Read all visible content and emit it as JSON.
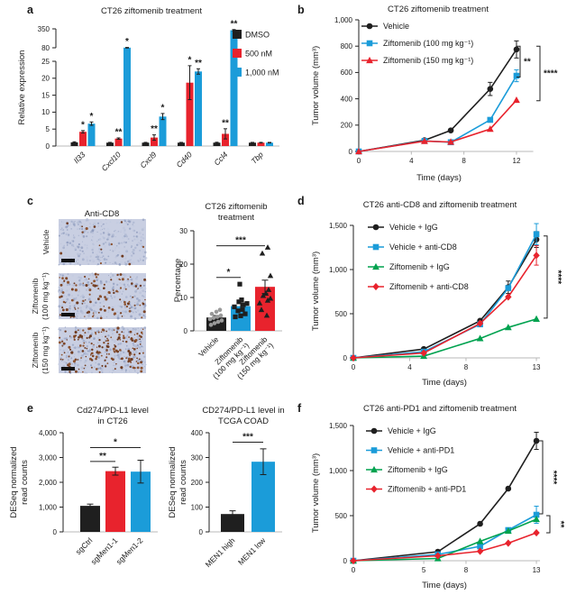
{
  "panel_letters": {
    "a": "a",
    "b": "b",
    "c": "c",
    "d": "d",
    "e": "e",
    "f": "f"
  },
  "colors": {
    "black": "#1f1f1f",
    "red": "#e8232d",
    "blue": "#1b9cd9",
    "green": "#00a24f",
    "gray": "#9a9a9a",
    "axis": "#222222",
    "baseline": "#b9b9b9",
    "ihc_bg": "#c9cfe2",
    "ihc_speckles": [
      "#aeb8d2",
      "#9ba7c6",
      "#c3cbe0",
      "#8d9abc",
      "#bac2da"
    ],
    "ihc_dots": [
      "#7d4527",
      "#8d5330",
      "#6e3a1f"
    ],
    "scalebar": "#111111"
  },
  "ihc": {
    "title": "Anti-CD8",
    "rows": [
      {
        "lines": [
          "Vehicle"
        ],
        "dots": 14
      },
      {
        "lines": [
          "Ziftomenib",
          "(100 mg kg⁻¹)"
        ],
        "dots": 110
      },
      {
        "lines": [
          "Ziftomenib",
          "(150 mg kg⁻¹)"
        ],
        "dots": 185
      }
    ]
  },
  "chart_data": [
    {
      "id": "a",
      "type": "bar",
      "title": "CT26 ziftomenib treatment",
      "ylabel": "Relative expression",
      "categories": [
        "Il33",
        "Cxcl10",
        "Cxcl9",
        "Cd40",
        "Ccl4",
        "Tbp"
      ],
      "categories_italic": true,
      "broken_axis": {
        "lower_ticks": [
          [
            0,
            "0"
          ],
          [
            5,
            "5"
          ],
          [
            10,
            "10"
          ],
          [
            15,
            "15"
          ],
          [
            20,
            "20"
          ],
          [
            25,
            "25"
          ]
        ],
        "upper_ticks": [
          [
            80,
            "80"
          ],
          [
            350,
            "350"
          ]
        ]
      },
      "legend_position": "right",
      "series": [
        {
          "name": "DMSO",
          "color": "black",
          "values": [
            1.1,
            1,
            1,
            1,
            1,
            1
          ],
          "errors": [
            0.15,
            0.08,
            0.08,
            0.08,
            0.12,
            0.08
          ]
        },
        {
          "name": "500 nM",
          "color": "red",
          "values": [
            4.2,
            2.2,
            2.5,
            18.7,
            3.6,
            1
          ],
          "errors": [
            0.35,
            0.2,
            0.8,
            5,
            1.5,
            0.08
          ]
        },
        {
          "name": "1,000 nM",
          "color": "blue",
          "values": [
            6.6,
            82,
            8.7,
            22,
            330,
            1
          ],
          "errors": [
            0.5,
            3,
            0.9,
            0.8,
            10,
            0.08
          ]
        }
      ],
      "sig_stars": [
        {
          "cat": 0,
          "ser": 1,
          "text": "*"
        },
        {
          "cat": 0,
          "ser": 2,
          "text": "*"
        },
        {
          "cat": 1,
          "ser": 1,
          "text": "**"
        },
        {
          "cat": 1,
          "ser": 2,
          "text": "*"
        },
        {
          "cat": 2,
          "ser": 1,
          "text": "**"
        },
        {
          "cat": 2,
          "ser": 2,
          "text": "*"
        },
        {
          "cat": 3,
          "ser": 1,
          "text": "*"
        },
        {
          "cat": 3,
          "ser": 2,
          "text": "**"
        },
        {
          "cat": 4,
          "ser": 1,
          "text": "**"
        },
        {
          "cat": 4,
          "ser": 2,
          "text": "**"
        }
      ]
    },
    {
      "id": "b",
      "type": "line",
      "title": "CT26 ziftomenib treatment",
      "xlabel": "Time (days)",
      "ylabel": "Tumor volume (mm³)",
      "xlim": [
        0,
        13
      ],
      "ylim": [
        0,
        1000
      ],
      "x": [
        0,
        5,
        7,
        10,
        12
      ],
      "xticks": [
        [
          0,
          "0"
        ],
        [
          4,
          "4"
        ],
        [
          8,
          "8"
        ],
        [
          12,
          "12"
        ]
      ],
      "yticks": [
        [
          0,
          "0"
        ],
        [
          200,
          "200"
        ],
        [
          400,
          "400"
        ],
        [
          600,
          "600"
        ],
        [
          800,
          "800"
        ],
        [
          1000,
          "1,000"
        ]
      ],
      "series": [
        {
          "name": "Vehicle",
          "color": "black",
          "marker": "circle",
          "values": [
            0,
            85,
            160,
            475,
            775
          ],
          "errors": [
            4,
            12,
            18,
            50,
            65
          ]
        },
        {
          "name": "Ziftomenib (100 mg kg⁻¹)",
          "color": "blue",
          "marker": "square",
          "values": [
            0,
            80,
            70,
            240,
            575
          ],
          "errors": [
            4,
            10,
            10,
            40,
            45
          ]
        },
        {
          "name": "Ziftomenib (150 mg kg⁻¹)",
          "color": "red",
          "marker": "triangle",
          "values": [
            0,
            78,
            72,
            170,
            390
          ],
          "errors": [
            4,
            10,
            10,
            20,
            38
          ]
        }
      ],
      "brackets": [
        {
          "top": 800,
          "bot": 565,
          "text": "**"
        },
        {
          "top": 800,
          "bot": 385,
          "text": "****"
        }
      ]
    },
    {
      "id": "c",
      "type": "bar-scatter",
      "title": [
        "CT26 ziftomenib",
        "treatment"
      ],
      "ylabel": "Percentage",
      "yticks": [
        [
          0,
          "0"
        ],
        [
          10,
          "10"
        ],
        [
          20,
          "20"
        ],
        [
          30,
          "30"
        ]
      ],
      "categories": [
        [
          "Vehicle"
        ],
        [
          "Ziftomenib",
          "(100 mg kg⁻¹)"
        ],
        [
          "Ziftomenib",
          "(150 mg kg⁻¹)"
        ]
      ],
      "bars": {
        "values": [
          4,
          7.4,
          13.2
        ],
        "errors": [
          0.6,
          1.0,
          2.0
        ],
        "colors": [
          "black",
          "blue",
          "red"
        ]
      },
      "points": [
        {
          "marker": "circle",
          "color": "gray",
          "pts": [
            [
              -6,
              1.8
            ],
            [
              -2,
              2.3
            ],
            [
              2,
              2.7
            ],
            [
              6,
              3.1
            ],
            [
              -7,
              3.5
            ],
            [
              -3,
              3.9
            ],
            [
              1,
              4.2
            ],
            [
              5,
              4.6
            ],
            [
              -5,
              5.1
            ],
            [
              0,
              5.7
            ],
            [
              4,
              6.3
            ]
          ]
        },
        {
          "marker": "square",
          "color": "black",
          "pts": [
            [
              -6,
              4.2
            ],
            [
              0,
              4.5
            ],
            [
              5,
              5.1
            ],
            [
              -3,
              6.0
            ],
            [
              2,
              6.4
            ],
            [
              -7,
              7.2
            ],
            [
              3,
              7.8
            ],
            [
              7,
              8.2
            ],
            [
              -2,
              8.7
            ],
            [
              1,
              9.3
            ],
            [
              -1,
              14.0
            ]
          ]
        },
        {
          "marker": "triangle",
          "color": "black",
          "pts": [
            [
              2,
              4.6
            ],
            [
              -4,
              6.3
            ],
            [
              -6,
              8.3
            ],
            [
              3,
              9.1
            ],
            [
              6,
              9.7
            ],
            [
              -2,
              10.5
            ],
            [
              1,
              11.2
            ],
            [
              4,
              12.3
            ],
            [
              6,
              16.5
            ],
            [
              -3,
              23.2
            ],
            [
              3,
              25.0
            ]
          ]
        }
      ],
      "sig_lines": [
        {
          "from": 0,
          "to": 1,
          "y": 16,
          "text": "*"
        },
        {
          "from": 0,
          "to": 2,
          "y": 25.5,
          "text": "***"
        }
      ]
    },
    {
      "id": "d",
      "type": "line",
      "title": "CT26 anti-CD8 and ziftomenib treatment",
      "xlabel": "Time (days)",
      "ylabel": "Tumor volume (mm³)",
      "xlim": [
        0,
        13
      ],
      "ylim": [
        0,
        1500
      ],
      "x": [
        0,
        5,
        9,
        11,
        13
      ],
      "xticks": [
        [
          0,
          "0"
        ],
        [
          4,
          "4"
        ],
        [
          8,
          "8"
        ],
        [
          13,
          "13"
        ]
      ],
      "yticks": [
        [
          0,
          "0"
        ],
        [
          500,
          "500"
        ],
        [
          1000,
          "1,000"
        ],
        [
          1500,
          "1,500"
        ]
      ],
      "series": [
        {
          "name": "Vehicle + IgG",
          "color": "black",
          "marker": "circle",
          "values": [
            0,
            100,
            420,
            800,
            1340
          ],
          "errors": [
            5,
            15,
            55,
            70,
            90
          ]
        },
        {
          "name": "Vehicle + anti-CD8",
          "color": "blue",
          "marker": "square",
          "values": [
            0,
            70,
            380,
            790,
            1400
          ],
          "errors": [
            5,
            12,
            45,
            60,
            120
          ]
        },
        {
          "name": "Ziftomenib + IgG",
          "color": "green",
          "marker": "triangle",
          "values": [
            0,
            20,
            220,
            345,
            440
          ],
          "errors": [
            4,
            8,
            25,
            45,
            50
          ]
        },
        {
          "name": "Ziftomenib + anti-CD8",
          "color": "red",
          "marker": "diamond",
          "values": [
            0,
            55,
            390,
            690,
            1160
          ],
          "errors": [
            5,
            10,
            50,
            60,
            110
          ]
        }
      ],
      "brackets": [
        {
          "top": 1380,
          "bot": 450,
          "text": "****"
        }
      ]
    },
    {
      "id": "e1",
      "type": "bar-simple",
      "title": [
        "Cd274/PD-L1 level",
        "in CT26"
      ],
      "ylabel": [
        "DESeq normalized",
        "read counts"
      ],
      "yticks": [
        [
          0,
          "0"
        ],
        [
          1000,
          "1,000"
        ],
        [
          2000,
          "2,000"
        ],
        [
          3000,
          "3,000"
        ],
        [
          4000,
          "4,000"
        ]
      ],
      "categories": [
        [
          "sgCtrl"
        ],
        [
          "sgMen1-1"
        ],
        [
          "sgMen1-2"
        ]
      ],
      "bars": {
        "values": [
          1050,
          2450,
          2430
        ],
        "errors": [
          70,
          160,
          460
        ],
        "colors": [
          "black",
          "red",
          "blue"
        ]
      },
      "sig_lines": [
        {
          "from": 0,
          "to": 1,
          "y": 2840,
          "text": "**"
        },
        {
          "from": 0,
          "to": 2,
          "y": 3400,
          "text": "*"
        }
      ]
    },
    {
      "id": "e2",
      "type": "bar-simple",
      "title": [
        "CD274/PD-L1 level in",
        "TCGA COAD"
      ],
      "ylabel": [
        "DESeq normalized",
        "read counts"
      ],
      "yticks": [
        [
          0,
          "0"
        ],
        [
          100,
          "100"
        ],
        [
          200,
          "200"
        ],
        [
          300,
          "300"
        ],
        [
          400,
          "400"
        ]
      ],
      "categories": [
        [
          "MEN1 high"
        ],
        [
          "MEN1 low"
        ]
      ],
      "bars": {
        "values": [
          72,
          283
        ],
        "errors": [
          13,
          52
        ],
        "colors": [
          "black",
          "blue"
        ]
      },
      "sig_lines": [
        {
          "from": 0,
          "to": 1,
          "y": 362,
          "text": "***"
        }
      ]
    },
    {
      "id": "f",
      "type": "line",
      "title": "CT26 anti-PD1 and ziftomenib treatment",
      "xlabel": "Time (days)",
      "ylabel": "Tumor volume (mm³)",
      "xlim": [
        0,
        13
      ],
      "ylim": [
        0,
        1500
      ],
      "x": [
        0,
        6,
        9,
        11,
        13
      ],
      "xticks": [
        [
          0,
          "0"
        ],
        [
          5,
          "5"
        ],
        [
          8,
          "8"
        ],
        [
          13,
          "13"
        ]
      ],
      "yticks": [
        [
          0,
          "0"
        ],
        [
          500,
          "500"
        ],
        [
          1000,
          "1,000"
        ],
        [
          1500,
          "1,500"
        ]
      ],
      "series": [
        {
          "name": "Vehicle + IgG",
          "color": "black",
          "marker": "circle",
          "values": [
            0,
            100,
            410,
            800,
            1330
          ],
          "errors": [
            5,
            15,
            40,
            60,
            95
          ]
        },
        {
          "name": "Vehicle + anti-PD1",
          "color": "blue",
          "marker": "square",
          "values": [
            0,
            70,
            160,
            340,
            510
          ],
          "errors": [
            5,
            10,
            25,
            40,
            95
          ]
        },
        {
          "name": "Ziftomenib + IgG",
          "color": "green",
          "marker": "triangle",
          "values": [
            0,
            25,
            215,
            330,
            460
          ],
          "errors": [
            4,
            8,
            25,
            40,
            45
          ]
        },
        {
          "name": "Ziftomenib + anti-PD1",
          "color": "red",
          "marker": "diamond",
          "values": [
            0,
            55,
            105,
            195,
            310
          ],
          "errors": [
            5,
            10,
            15,
            30,
            35
          ]
        }
      ],
      "brackets": [
        {
          "top": 1330,
          "bot": 520,
          "text": "****"
        },
        {
          "top": 500,
          "bot": 310,
          "text": "**"
        }
      ]
    }
  ]
}
